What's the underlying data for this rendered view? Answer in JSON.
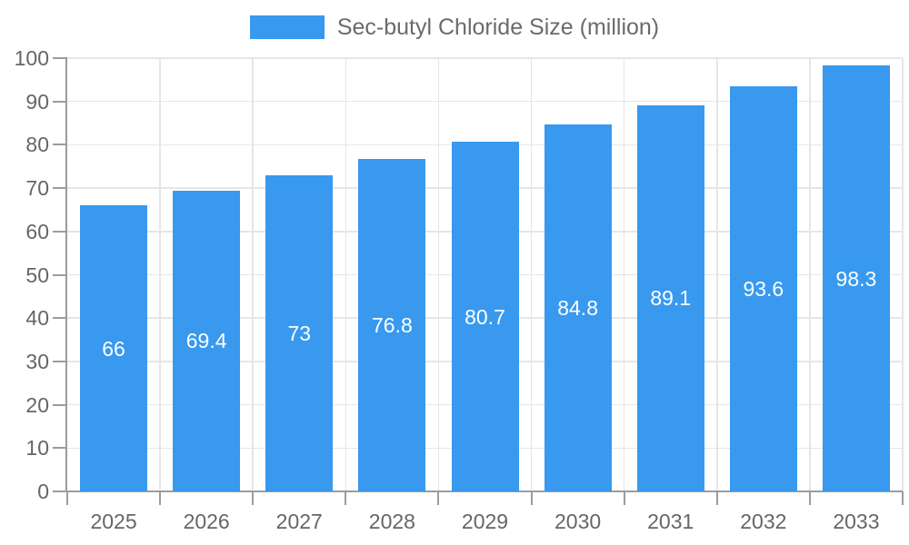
{
  "legend": {
    "label": "Sec-butyl Chloride Size (million)"
  },
  "colors": {
    "bar": "#3899EE",
    "axis": "#9C9C9C",
    "grid": "#E6E6E6",
    "tick_label": "#666666",
    "legend_text": "#6B6B6B",
    "bar_label": "#FFFFFF",
    "background": "#FFFFFF"
  },
  "chart_data": {
    "type": "bar",
    "title": "",
    "series_name": "Sec-butyl Chloride Size (million)",
    "categories": [
      "2025",
      "2026",
      "2027",
      "2028",
      "2029",
      "2030",
      "2031",
      "2032",
      "2033"
    ],
    "values": [
      66,
      69.4,
      73,
      76.8,
      80.7,
      84.8,
      89.1,
      93.6,
      98.3
    ],
    "xlabel": "",
    "ylabel": "",
    "ylim": [
      0,
      100
    ],
    "y_ticks": [
      0,
      10,
      20,
      30,
      40,
      50,
      60,
      70,
      80,
      90,
      100
    ],
    "grid": true,
    "legend_position": "top",
    "value_label_position": "inside-middle"
  }
}
